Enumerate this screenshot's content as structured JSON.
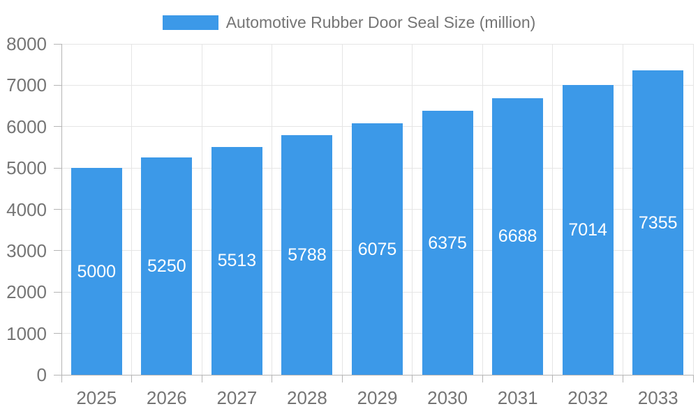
{
  "legend": {
    "label": "Automotive Rubber Door Seal Size (million)"
  },
  "colors": {
    "bar": "#3C99E8",
    "grid_line": "#E5E5E5",
    "axis_line": "#B5B5B5",
    "tick_label": "#757575",
    "bar_value_label": "#FFFFFF",
    "background": "#FFFFFF"
  },
  "chart_data": {
    "type": "bar",
    "title": "Automotive Rubber Door Seal Size (million)",
    "series_name": "Automotive Rubber Door Seal Size (million)",
    "categories": [
      "2025",
      "2026",
      "2027",
      "2028",
      "2029",
      "2030",
      "2031",
      "2032",
      "2033"
    ],
    "values": [
      5000,
      5250,
      5513,
      5788,
      6075,
      6375,
      6688,
      7014,
      7355
    ],
    "xlabel": "",
    "ylabel": "",
    "ylim": [
      0,
      8000
    ],
    "ytick_step": 1000,
    "grid": true,
    "legend_position": "top",
    "value_labels": "inside-center"
  }
}
